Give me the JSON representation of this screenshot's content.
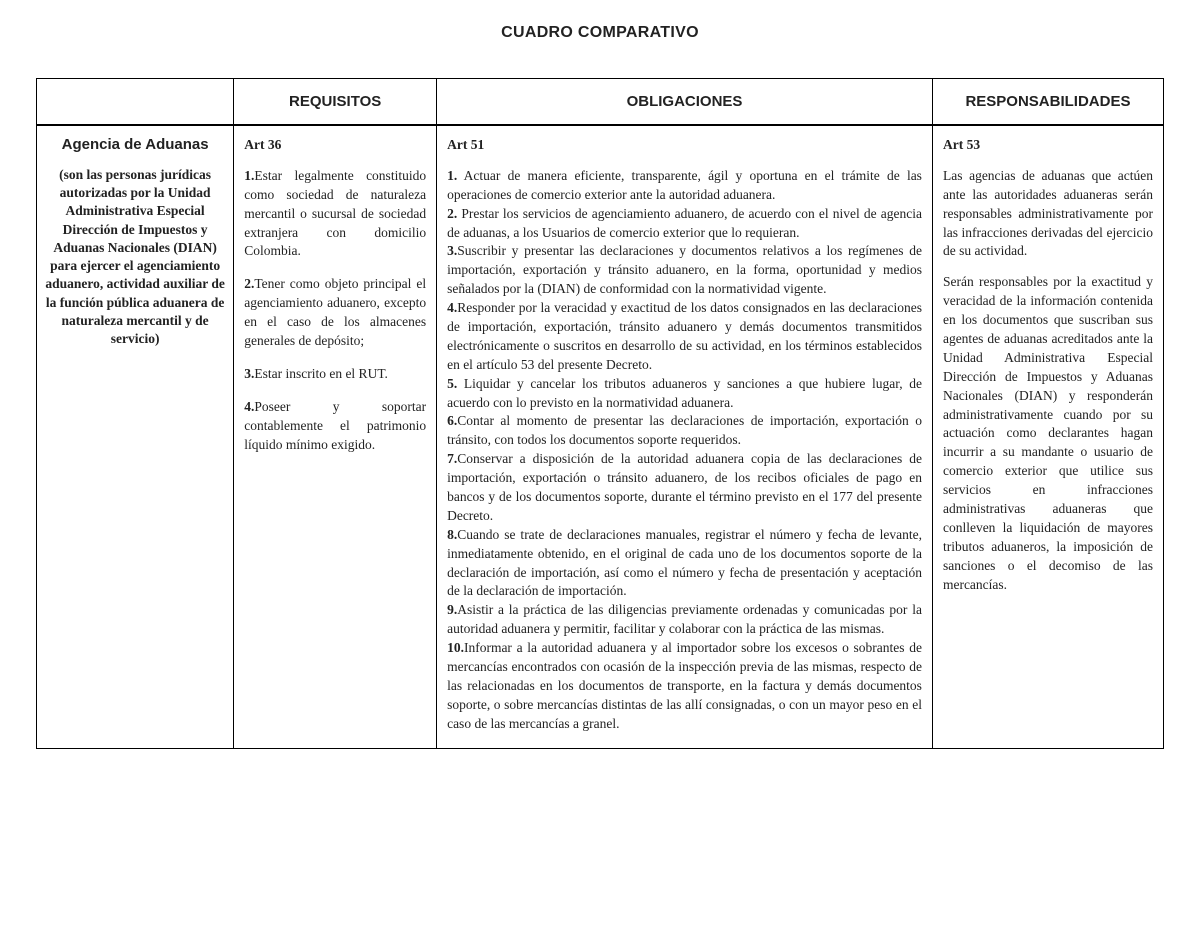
{
  "page_title": "CUADRO COMPARATIVO",
  "columns": {
    "requisitos": "REQUISITOS",
    "obligaciones": "OBLIGACIONES",
    "responsabilidades": "RESPONSABILIDADES"
  },
  "row": {
    "title": "Agencia de Aduanas",
    "desc": "(son las personas jurídicas autorizadas por la Unidad Administrativa Especial Dirección de Impuestos y Aduanas Nacionales (DIAN) para ejercer el agenciamiento aduanero, actividad auxiliar de la función pública aduanera de naturaleza mercantil y de servicio)"
  },
  "requisitos": {
    "art": "Art 36",
    "items": [
      "Estar legalmente constituido como sociedad de naturaleza mercantil o sucursal de sociedad extranjera con domicilio Colombia.",
      "Tener como objeto principal el agenciamiento aduanero, excepto en el caso de los almacenes generales de depósito;",
      "Estar inscrito en el RUT.",
      "Poseer y soportar contablemente el patrimonio líquido mínimo exigido."
    ]
  },
  "obligaciones": {
    "art": "Art 51",
    "items": [
      "Actuar de manera eficiente, transparente, ágil y oportuna en el trámite de las operaciones de comercio exterior ante la autoridad aduanera.",
      "Prestar los servicios de agenciamiento aduanero, de acuerdo con el nivel de agencia de aduanas, a los Usuarios de comercio exterior que lo requieran.",
      "Suscribir y presentar las declaraciones y documentos relativos a los regímenes de importación, exportación y tránsito aduanero, en la forma, oportunidad y medios señalados por la (DIAN) de conformidad con la normatividad vigente.",
      "Responder por la veracidad y exactitud de los datos consignados en las declaraciones de importación, exportación, tránsito aduanero y demás documentos transmitidos electrónicamente o suscritos en desarrollo de su actividad, en los términos establecidos en el artículo 53 del presente Decreto.",
      "Liquidar y cancelar los tributos aduaneros y sanciones a que hubiere lugar, de acuerdo con lo previsto en la normatividad aduanera.",
      "Contar al momento de presentar las declaraciones de importación, exportación o tránsito, con todos los documentos soporte requeridos.",
      "Conservar a disposición de la autoridad aduanera copia de las declaraciones de importación, exportación o tránsito aduanero, de los recibos oficiales de pago en bancos y de los documentos soporte, durante el término previsto en el 177 del presente Decreto.",
      "Cuando se trate de declaraciones manuales, registrar el número y fecha de levante, inmediatamente obtenido, en el original de cada uno de los documentos soporte de la declaración de importación, así como el número y fecha de presentación y aceptación de la declaración de importación.",
      "Asistir a la práctica de las diligencias previamente ordenadas y comunicadas por la autoridad aduanera y permitir, facilitar y colaborar con la práctica de las mismas.",
      "Informar a la autoridad aduanera y al importador sobre los excesos o sobrantes de mercancías encontrados con ocasión de la inspección previa de las mismas, respecto de las relacionadas en los documentos de transporte, en la factura y demás documentos soporte, o sobre mercancías distintas de las allí consignadas, o con un mayor peso en el caso de las mercancías a granel."
    ]
  },
  "responsabilidades": {
    "art": "Art 53",
    "paragraphs": [
      "Las agencias de aduanas que actúen ante las autoridades aduaneras serán responsables administrativamente por las infracciones derivadas del ejercicio de su actividad.",
      "Serán responsables por la exactitud y veracidad de la información contenida en los documentos que suscriban sus agentes de aduanas acreditados ante la Unidad Administrativa Especial Dirección de Impuestos y Aduanas Nacionales (DIAN) y responderán administrativamente cuando por su actuación como declarantes hagan incurrir a su mandante o usuario de comercio exterior que utilice sus servicios en infracciones administrativas aduaneras que conlleven la liquidación de mayores tributos aduaneros, la imposición de sanciones o el decomiso de las mercancías."
    ]
  },
  "style": {
    "font_body": "Times New Roman",
    "font_headings": "Arial",
    "title_fontsize_pt": 16,
    "header_fontsize_pt": 15,
    "cell_fontsize_pt": 13.5,
    "border_color": "#000000",
    "text_color": "#222222",
    "background_color": "#ffffff",
    "column_widths_pct": {
      "rowhead": 17.5,
      "requisitos": 18,
      "obligaciones": 44,
      "responsabilidades": 20.5
    }
  }
}
